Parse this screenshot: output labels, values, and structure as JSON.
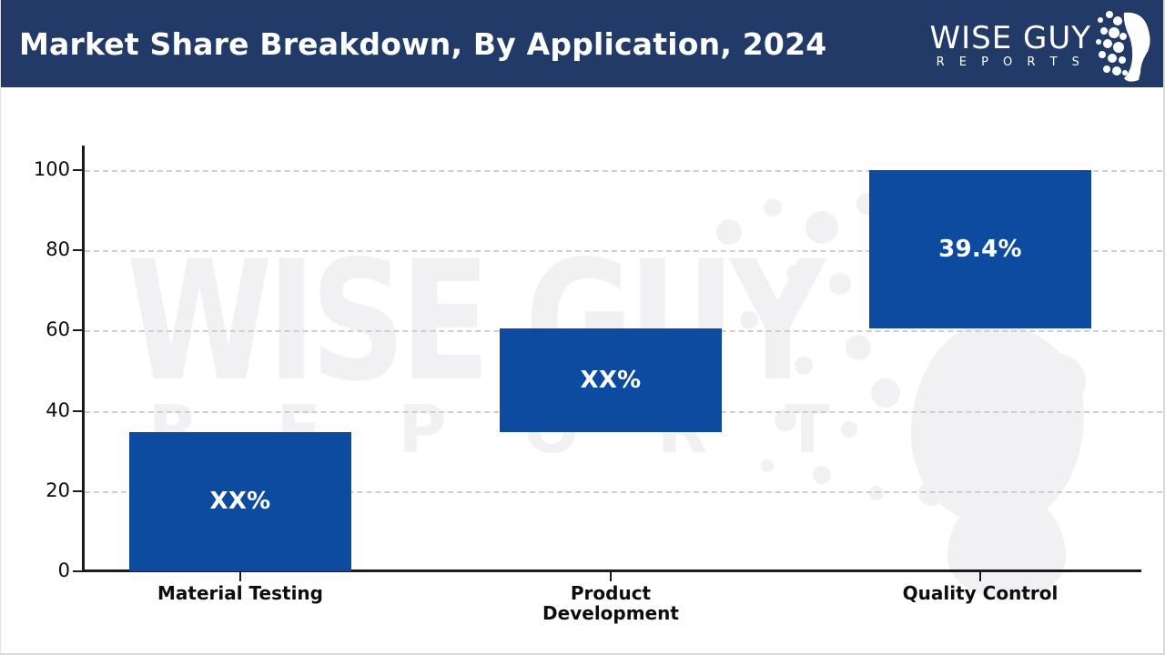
{
  "header": {
    "title": "Market Share Breakdown, By Application, 2024"
  },
  "logo": {
    "name_top": "WISE GUY",
    "name_bottom": "R E P O R T S"
  },
  "watermark": {
    "text_top": "WISE GUY",
    "text_bottom": "R E P O R T S"
  },
  "colors": {
    "header_bg": "#213a67",
    "bar_fill": "#0d4ba0",
    "bar_label": "#ffffff",
    "gridline": "#cfcfcf",
    "axis": "#1a1a1a",
    "watermark": "#f1f1f4"
  },
  "chart_data": {
    "type": "bar",
    "subtype": "floating-waterfall-segments",
    "title": "Market Share Breakdown, By Application, 2024",
    "categories": [
      "Material Testing",
      "Product Development",
      "Quality Control"
    ],
    "bars": [
      {
        "category": "Material Testing",
        "start": 0,
        "end": 34.8,
        "label": "XX%"
      },
      {
        "category": "Product Development",
        "start": 34.8,
        "end": 60.6,
        "label": "XX%"
      },
      {
        "category": "Quality Control",
        "start": 60.6,
        "end": 100,
        "label": "39.4%"
      }
    ],
    "xlabel": "",
    "ylabel": "",
    "ylim": [
      0,
      100
    ],
    "yticks": [
      0,
      20,
      40,
      60,
      80,
      100
    ],
    "grid": "horizontal-dashed",
    "legend": "none"
  }
}
